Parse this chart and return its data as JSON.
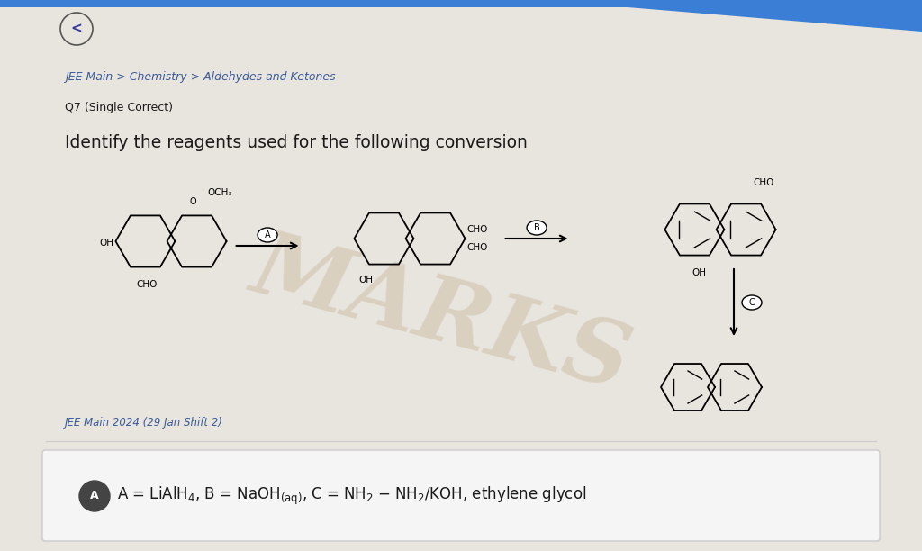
{
  "bg_color": "#e8e4de",
  "top_bar_color": "#3a7fd5",
  "breadcrumb": "JEE Main > Chemistry > Aldehydes and Ketones",
  "breadcrumb_color": "#3a5a9a",
  "question_label": "Q7 (Single Correct)",
  "question_text": "Identify the reagents used for the following conversion",
  "source_label": "JEE Main 2024 (29 Jan Shift 2)",
  "source_color": "#3a5a9a",
  "answer_option": "A",
  "watermark_text": "MARKS",
  "watermark_color": "#c0aa88",
  "watermark_alpha": 0.35,
  "back_button_text": "<",
  "text_color": "#1a1a1a",
  "answer_box_color": "#f5f5f5",
  "answer_circle_color": "#444444",
  "answer_circle_text_color": "#ffffff",
  "divider_color": "#cccccc"
}
